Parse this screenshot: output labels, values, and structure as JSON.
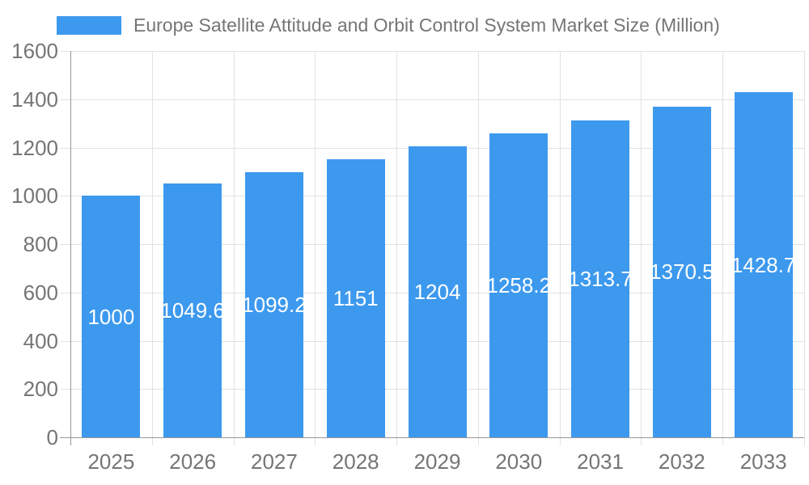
{
  "chart_data": {
    "type": "bar",
    "title": "Europe Satellite Attitude and Orbit Control System Market Size (Million)",
    "categories": [
      "2025",
      "2026",
      "2027",
      "2028",
      "2029",
      "2030",
      "2031",
      "2032",
      "2033"
    ],
    "values": [
      1000,
      1049.6,
      1099.2,
      1151,
      1204,
      1258.2,
      1313.7,
      1370.5,
      1428.7
    ],
    "bar_labels": [
      "1000",
      "1049.6",
      "1099.2",
      "1151",
      "1204",
      "1258.2",
      "1313.7",
      "1370.5",
      "1428.7"
    ],
    "yticks": [
      0,
      200,
      400,
      600,
      800,
      1000,
      1200,
      1400,
      1600
    ],
    "ylim": [
      0,
      1600
    ],
    "xlabel": "",
    "ylabel": "",
    "grid": true,
    "legend_position": "top",
    "colors": {
      "bar": "#3d99ee",
      "bar_label": "#ffffff",
      "axis_text": "#757575",
      "axis_line": "#979797",
      "gridline": "#e2e2e2",
      "background": "#ffffff"
    }
  }
}
